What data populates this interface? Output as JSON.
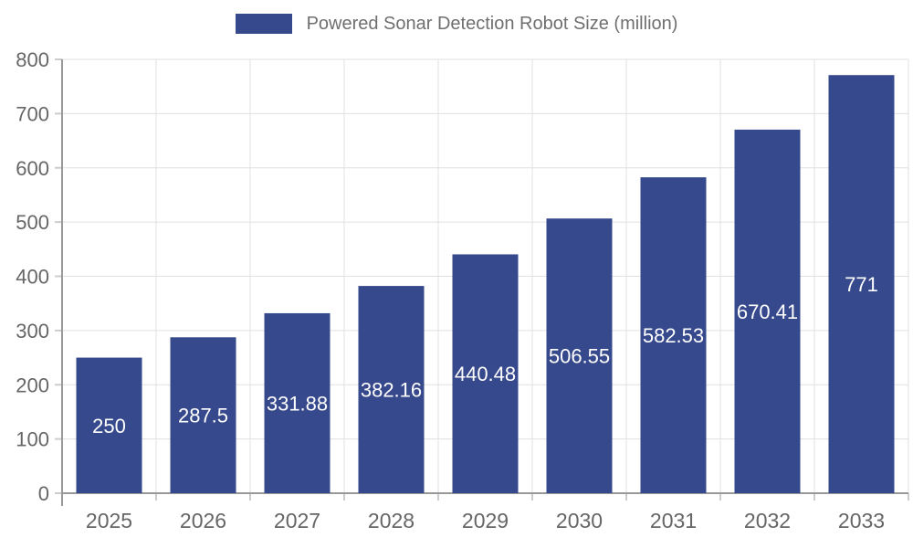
{
  "legend": {
    "label": "Powered Sonar Detection Robot Size (million)",
    "swatch_color": "#36498c"
  },
  "chart_data": {
    "type": "bar",
    "title": "Powered Sonar Detection Robot Size (million)",
    "categories": [
      "2025",
      "2026",
      "2027",
      "2028",
      "2029",
      "2030",
      "2031",
      "2032",
      "2033"
    ],
    "values": [
      250,
      287.5,
      331.88,
      382.16,
      440.48,
      506.55,
      582.53,
      670.41,
      771
    ],
    "value_labels": [
      "250",
      "287.5",
      "331.88",
      "382.16",
      "440.48",
      "506.55",
      "582.53",
      "670.41",
      "771"
    ],
    "xlabel": "",
    "ylabel": "",
    "ylim": [
      0,
      800
    ],
    "ytick_step": 100,
    "ytick_labels": [
      "0",
      "100",
      "200",
      "300",
      "400",
      "500",
      "600",
      "700",
      "800"
    ],
    "grid": true,
    "legend_position": "top",
    "bar_color": "#36498c",
    "value_label_color": "#ffffff",
    "axis_color": "#999999",
    "grid_color": "#e0e0e0",
    "tick_label_color": "#666666"
  }
}
